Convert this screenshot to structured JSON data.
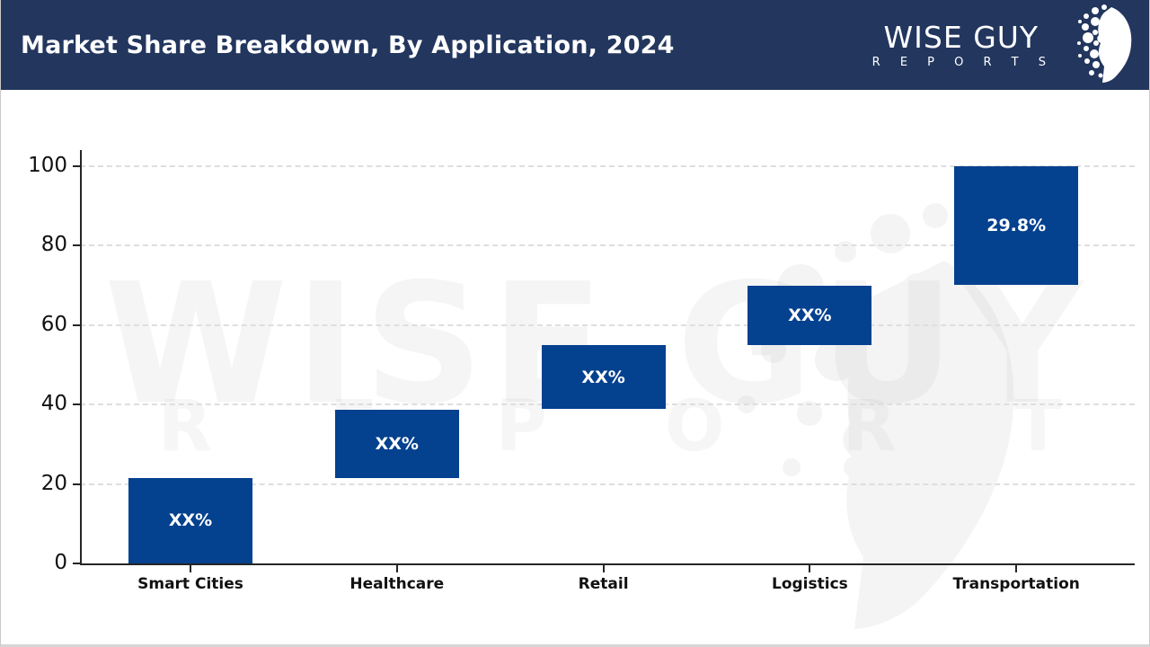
{
  "header": {
    "title": "Market Share Breakdown, By Application, 2024",
    "logo": {
      "line1": "WISE GUY",
      "line2": "R E P O R T S"
    }
  },
  "colors": {
    "header_bg": "#22365e",
    "bar": "#04418f",
    "bar_label": "#ffffff",
    "axis": "#262626",
    "grid": "#dedede"
  },
  "watermark": {
    "line1": "WISE GUY",
    "line2": "R E P O R T S"
  },
  "chart_data": {
    "type": "bar",
    "subtype": "waterfall",
    "title": "Market Share Breakdown, By Application, 2024",
    "xlabel": "",
    "ylabel": "",
    "categories": [
      "Smart Cities",
      "Healthcare",
      "Retail",
      "Logistics",
      "Transportation"
    ],
    "segments": [
      {
        "category": "Smart Cities",
        "start": 0,
        "end": 21.5,
        "label": "XX%"
      },
      {
        "category": "Healthcare",
        "start": 21.6,
        "end": 38.7,
        "label": "XX%"
      },
      {
        "category": "Retail",
        "start": 38.8,
        "end": 55.0,
        "label": "XX%"
      },
      {
        "category": "Logistics",
        "start": 55.0,
        "end": 69.9,
        "label": "XX%"
      },
      {
        "category": "Transportation",
        "start": 70.2,
        "end": 100,
        "label": "29.8%"
      }
    ],
    "values": [
      21.5,
      17.1,
      16.2,
      14.9,
      29.8
    ],
    "yticks": [
      0,
      20,
      40,
      60,
      80,
      100
    ],
    "ylim": [
      0,
      104
    ],
    "grid": "horizontal-dashed",
    "legend": "none"
  }
}
